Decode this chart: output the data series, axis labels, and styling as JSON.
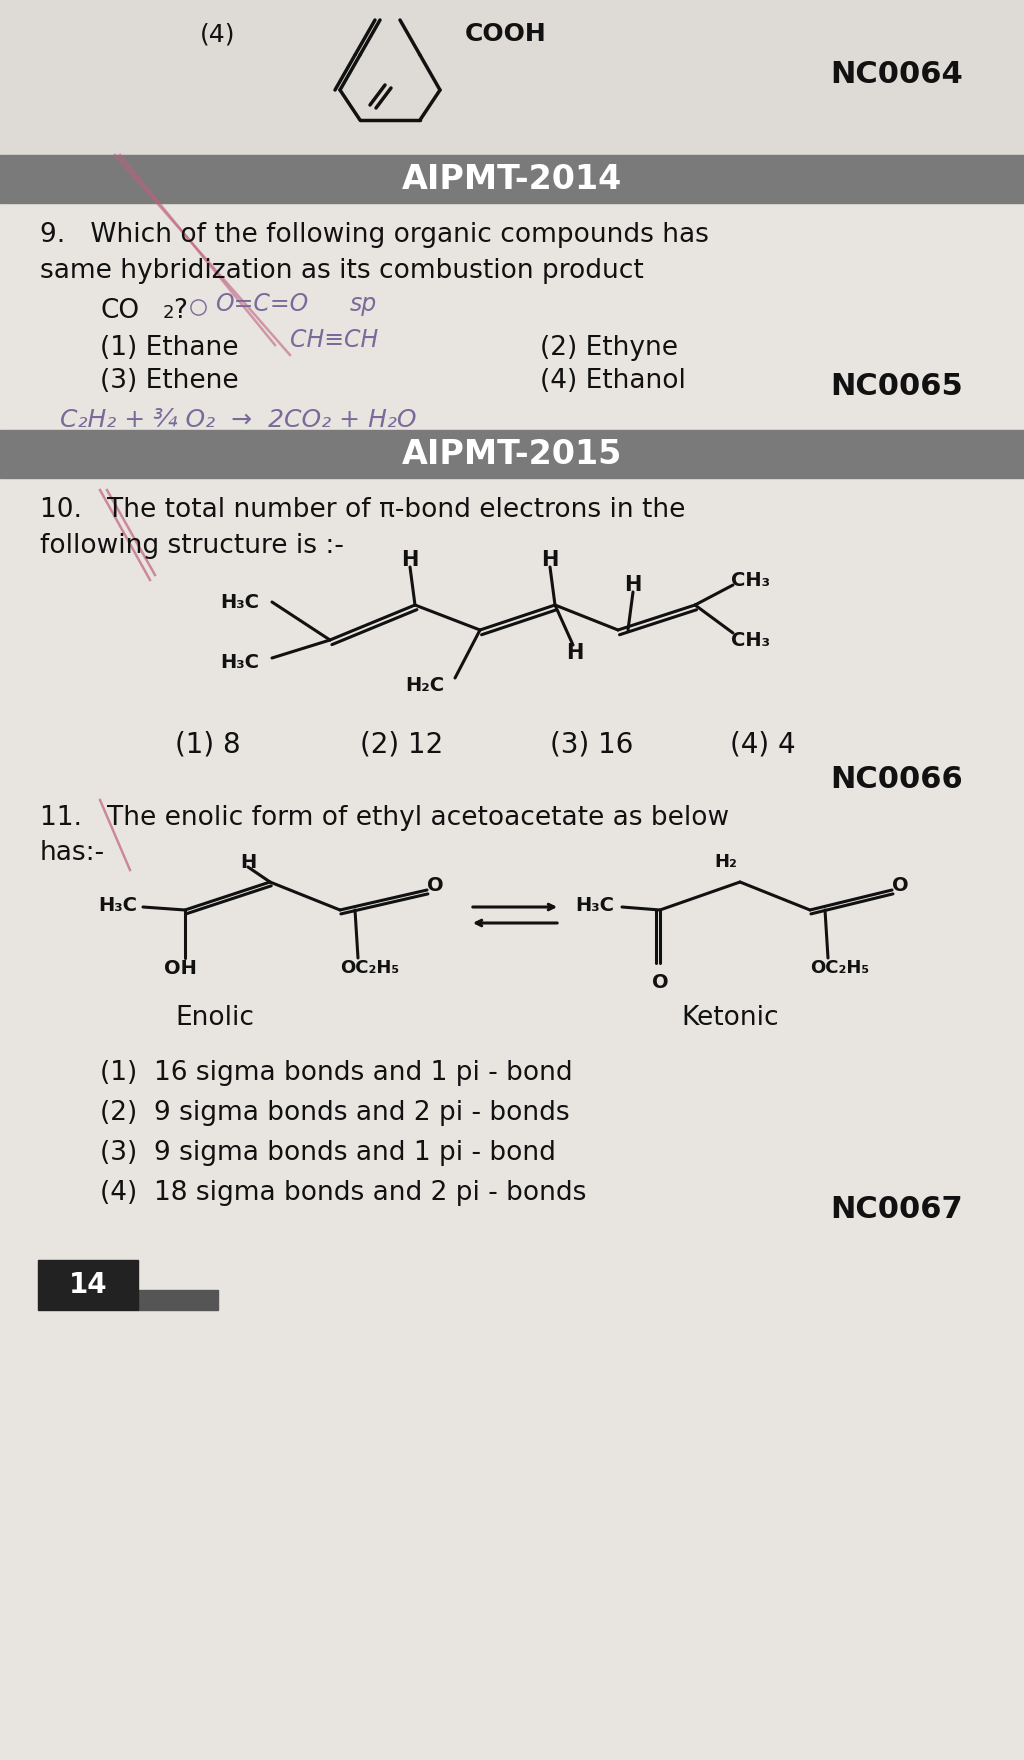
{
  "bg_color": "#e8e5e0",
  "header_band_color": "#888888",
  "title1": "AIPMT-2014",
  "title2": "AIPMT-2015",
  "nc0064": "NC0064",
  "nc0065": "NC0065",
  "nc0066": "NC0066",
  "nc0067": "NC0067",
  "q9_text1": "9.   Which of the following organic compounds has",
  "q9_text2": "same hybridization as its combustion product",
  "q9_co2": "CO",
  "q9_opt1": "(1) Ethane",
  "q9_opt2": "(2) Ethyne",
  "q9_opt3": "(3) Ethene",
  "q9_opt4": "(4) Ethanol",
  "q10_text1": "10.   The total number of π-bond electrons in the",
  "q10_text2": "following structure is :-",
  "q10_opt1": "(1) 8",
  "q10_opt2": "(2) 12",
  "q10_opt3": "(3) 16",
  "q10_opt4": "(4) 4",
  "q11_text1": "11.   The enolic form of ethyl acetoacetate as below",
  "q11_text2": "has:-",
  "enolic_label": "Enolic",
  "ketonic_label": "Ketonic",
  "q11_opt1": "(1)  16 sigma bonds and 1 pi - bond",
  "q11_opt2": "(2)  9 sigma bonds and 2 pi - bonds",
  "q11_opt3": "(3)  9 sigma bonds and 1 pi - bond",
  "q11_opt4": "(4)  18 sigma bonds and 2 pi - bonds",
  "page_num": "14",
  "handwritten_color": "#7a6a9a",
  "pink_color": "#c06080",
  "body_color": "#111111",
  "band_text_color": "#ffffff"
}
